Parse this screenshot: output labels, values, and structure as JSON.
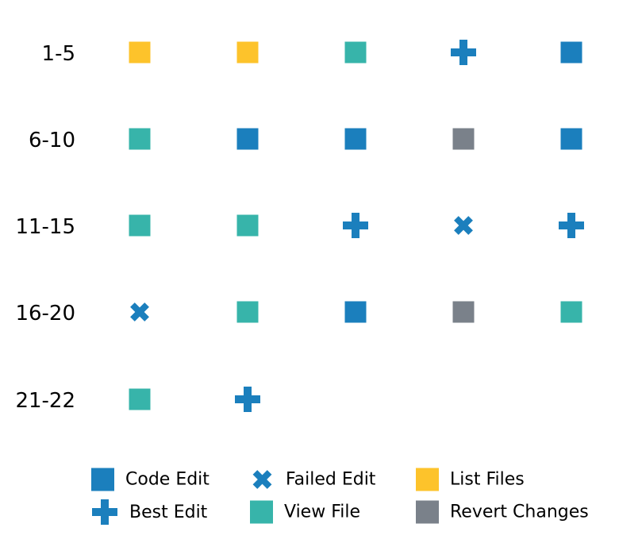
{
  "chart_data": {
    "type": "scatter",
    "title": "",
    "xlabel": "",
    "ylabel": "",
    "grid_lines": "off",
    "row_labels": [
      "1-5",
      "6-10",
      "11-15",
      "16-20",
      "21-22"
    ],
    "grid": [
      [
        "List Files",
        "List Files",
        "View File",
        "Best Edit",
        "Code Edit"
      ],
      [
        "View File",
        "Code Edit",
        "Code Edit",
        "Revert Changes",
        "Code Edit"
      ],
      [
        "View File",
        "View File",
        "Best Edit",
        "Failed Edit",
        "Best Edit"
      ],
      [
        "Failed Edit",
        "View File",
        "Code Edit",
        "Revert Changes",
        "View File"
      ],
      [
        "View File",
        "Best Edit",
        null,
        null,
        null
      ]
    ],
    "markers": {
      "Code Edit": {
        "shape": "square",
        "color": "#1b7fbd"
      },
      "Best Edit": {
        "shape": "plus",
        "color": "#1b7fbd"
      },
      "Failed Edit": {
        "shape": "x",
        "color": "#1b7fbd"
      },
      "View File": {
        "shape": "square",
        "color": "#37b4aa"
      },
      "List Files": {
        "shape": "square",
        "color": "#fdc32b"
      },
      "Revert Changes": {
        "shape": "square",
        "color": "#7a818a"
      }
    },
    "legend": {
      "position": "bottom",
      "entries": [
        {
          "label": "Code Edit",
          "shape": "square",
          "color": "#1b7fbd"
        },
        {
          "label": "Failed Edit",
          "shape": "x",
          "color": "#1b7fbd"
        },
        {
          "label": "List Files",
          "shape": "square",
          "color": "#fdc32b"
        },
        {
          "label": "Best Edit",
          "shape": "plus",
          "color": "#1b7fbd"
        },
        {
          "label": "View File",
          "shape": "square",
          "color": "#37b4aa"
        },
        {
          "label": "Revert Changes",
          "shape": "square",
          "color": "#7a818a"
        }
      ]
    },
    "colors": {
      "blue": "#1b7fbd",
      "teal": "#37b4aa",
      "yellow": "#fdc32b",
      "gray": "#7a818a",
      "background": "#ffffff",
      "text": "#000000"
    }
  }
}
